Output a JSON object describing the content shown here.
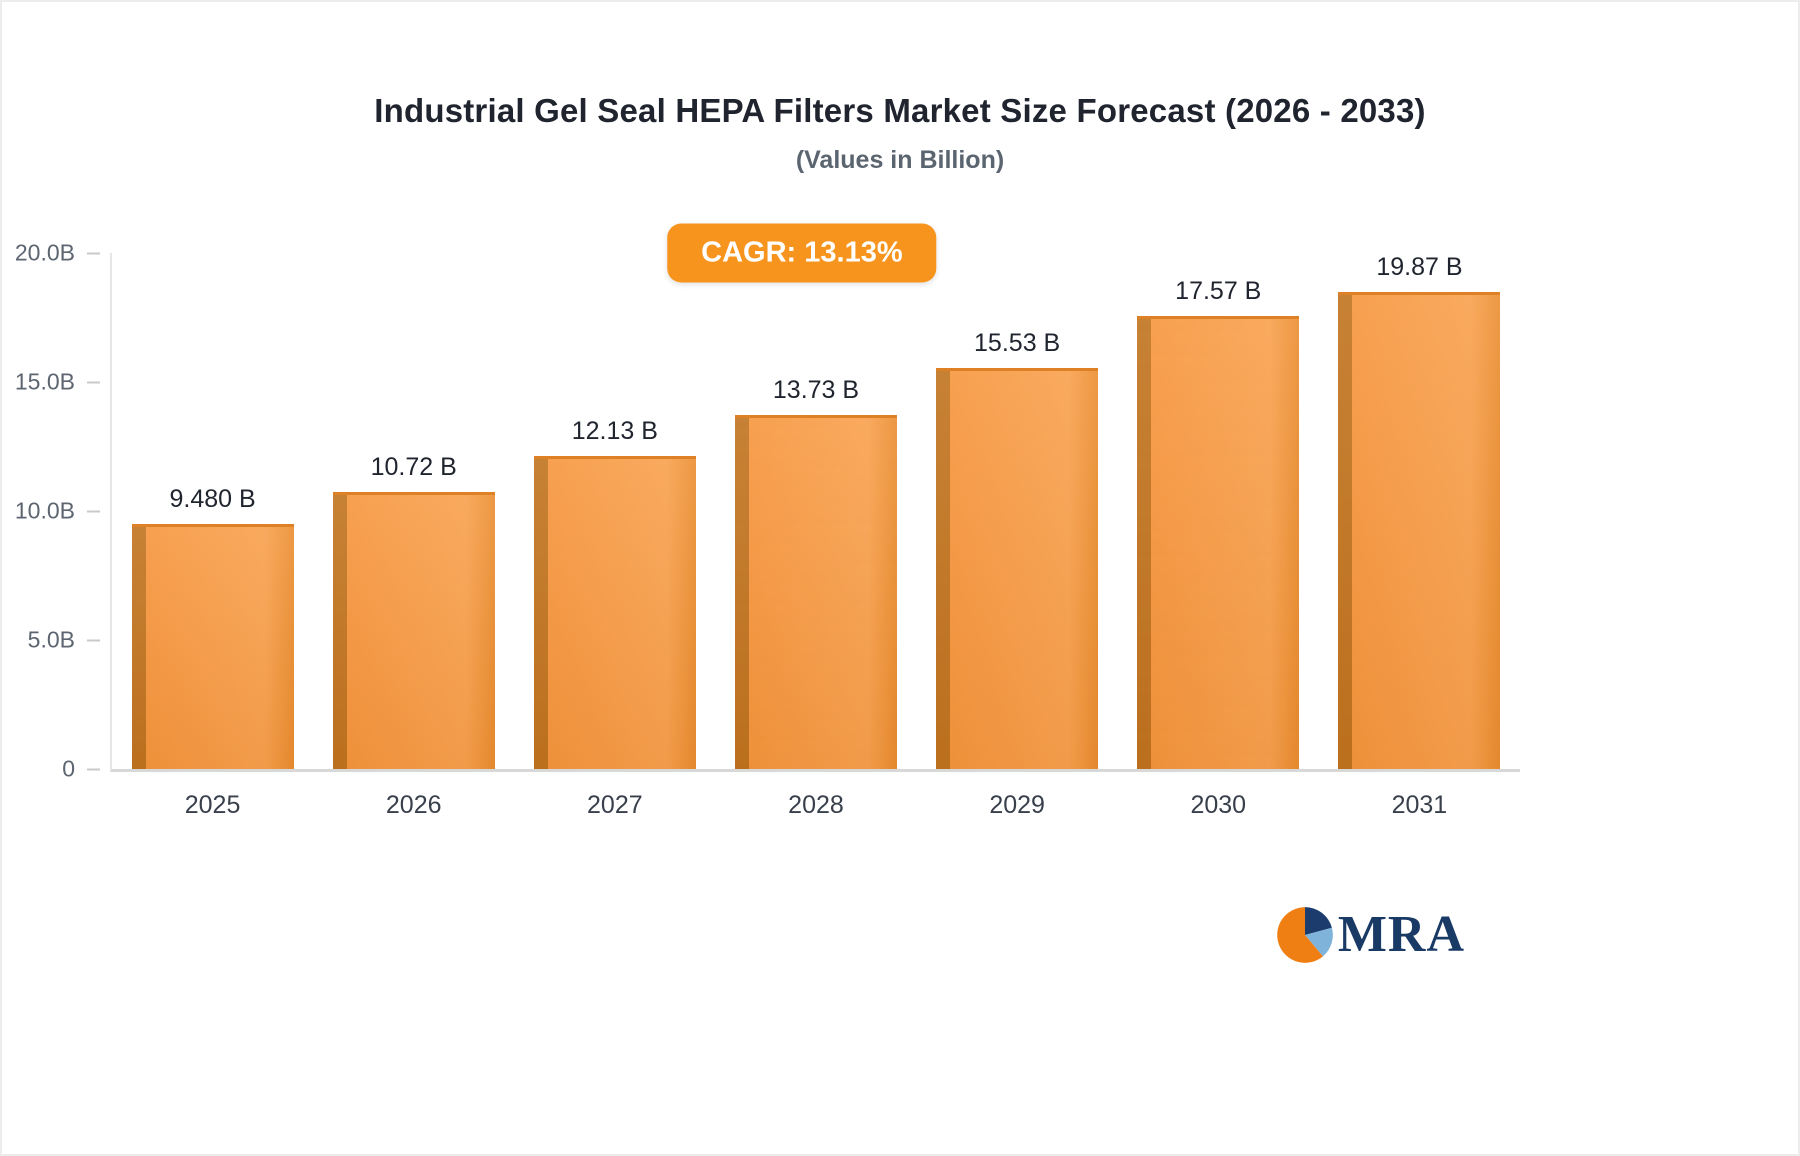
{
  "header": {
    "title": "Industrial Gel Seal HEPA Filters Market Size Forecast (2026 - 2033)",
    "subtitle": "(Values in Billion)"
  },
  "badge": {
    "label": "CAGR: 13.13%",
    "color": "#F7941E"
  },
  "chart_data": {
    "type": "bar",
    "title": "Industrial Gel Seal HEPA Filters Market Size Forecast (2026 - 2033)",
    "subtitle": "(Values in Billion)",
    "categories": [
      "2025",
      "2026",
      "2027",
      "2028",
      "2029",
      "2030",
      "2031"
    ],
    "values": [
      9.48,
      10.72,
      12.13,
      13.73,
      15.53,
      17.57,
      19.87
    ],
    "value_labels": [
      "9.480 B",
      "10.72 B",
      "12.13 B",
      "13.73 B",
      "15.53 B",
      "17.57 B",
      "19.87 B"
    ],
    "yticks": [
      {
        "label": "20.0B",
        "value": 20
      },
      {
        "label": "15.0B",
        "value": 15
      },
      {
        "label": "10.0B",
        "value": 10
      },
      {
        "label": "5.0B",
        "value": 5
      },
      {
        "label": "0",
        "value": 0
      }
    ],
    "ylim": [
      0,
      20
    ],
    "xlabel": "",
    "ylabel": "",
    "grid": false,
    "legend": "none",
    "annotation": "CAGR: 13.13%",
    "bar_color": "#F6953C",
    "bar_side_color": "#C1731E"
  },
  "logo": {
    "text": "MRA"
  }
}
